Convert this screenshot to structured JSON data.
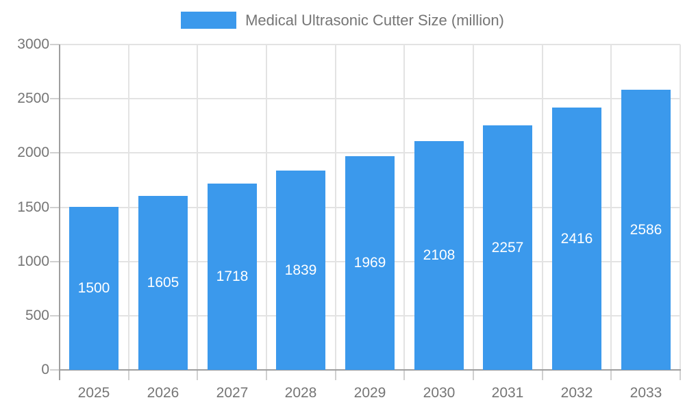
{
  "chart_data": {
    "type": "bar",
    "legend_label": "Medical Ultrasonic Cutter Size (million)",
    "legend_position": "top-center",
    "categories": [
      "2025",
      "2026",
      "2027",
      "2028",
      "2029",
      "2030",
      "2031",
      "2032",
      "2033"
    ],
    "values": [
      1500,
      1605,
      1718,
      1839,
      1969,
      2108,
      2257,
      2416,
      2586
    ],
    "bar_value_labels": [
      "1500",
      "1605",
      "1718",
      "1839",
      "1969",
      "2108",
      "2257",
      "2416",
      "2586"
    ],
    "xlabel": "",
    "ylabel": "",
    "y_axis": {
      "min": 0,
      "max": 3000,
      "tick_interval": 500,
      "tick_labels": [
        "0",
        "500",
        "1000",
        "1500",
        "2000",
        "2500",
        "3000"
      ]
    },
    "grid": true,
    "colors": {
      "bar": "#3b99ec",
      "text": "#757575",
      "axis": "#9e9e9e",
      "grid": "#e3e3e3",
      "tick": "#d0d0d0",
      "value_label": "#ffffff",
      "background": "#ffffff"
    }
  }
}
